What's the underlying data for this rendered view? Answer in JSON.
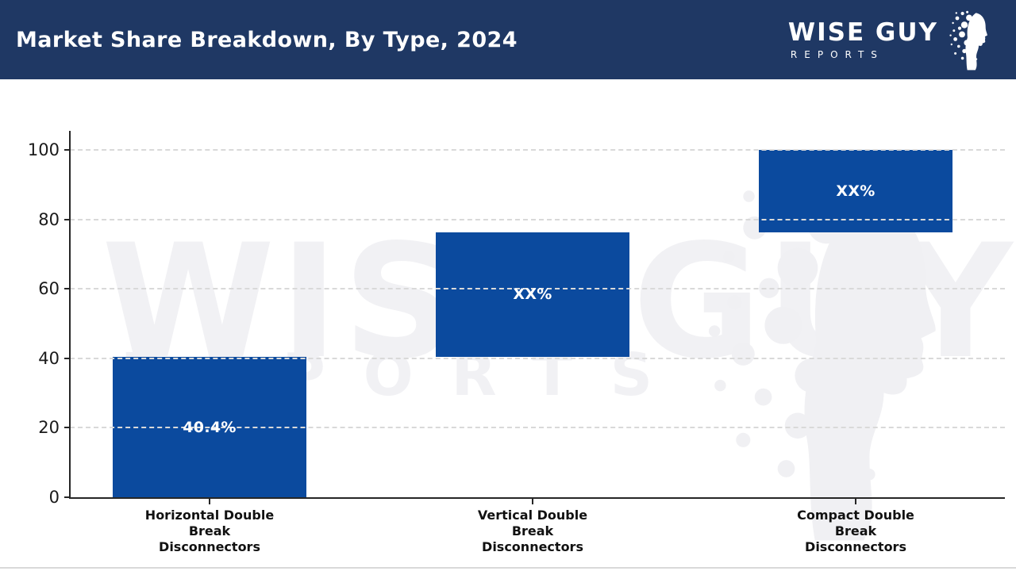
{
  "header": {
    "title": "Market Share Breakdown, By Type, 2024",
    "logo": {
      "main": "WISE GUY",
      "sub": "REPORTS"
    }
  },
  "watermark": {
    "line1": "WISE GUY",
    "line2": "REPORTS"
  },
  "colors": {
    "header_bg": "#1f3864",
    "bar": "#0b4a9e",
    "grid": "#d9d9d9",
    "axis": "#262626",
    "watermark": "#f1f1f4",
    "bar_label_text": "#ffffff"
  },
  "chart_data": {
    "type": "bar",
    "subtype": "stacked-waterfall",
    "title": "Market Share Breakdown, By Type, 2024",
    "xlabel": "",
    "ylabel": "",
    "ylim": [
      0,
      105
    ],
    "yticks": [
      0,
      20,
      40,
      60,
      80,
      100
    ],
    "grid": "horizontal-dashed",
    "legend": "none",
    "categories": [
      "Horizontal Double Break Disconnectors",
      "Vertical Double Break Disconnectors",
      "Compact Double Break Disconnectors"
    ],
    "category_label_lines": [
      [
        "Horizontal Double",
        "Break",
        "Disconnectors"
      ],
      [
        "Vertical Double",
        "Break",
        "Disconnectors"
      ],
      [
        "Compact Double",
        "Break",
        "Disconnectors"
      ]
    ],
    "segments": [
      {
        "category": "Horizontal Double Break Disconnectors",
        "start": 0,
        "end": 40.4,
        "label": "40.4%"
      },
      {
        "category": "Vertical Double Break Disconnectors",
        "start": 40.4,
        "end": 76.3,
        "label": "XX%"
      },
      {
        "category": "Compact Double Break Disconnectors",
        "start": 76.3,
        "end": 100,
        "label": "XX%"
      }
    ]
  }
}
